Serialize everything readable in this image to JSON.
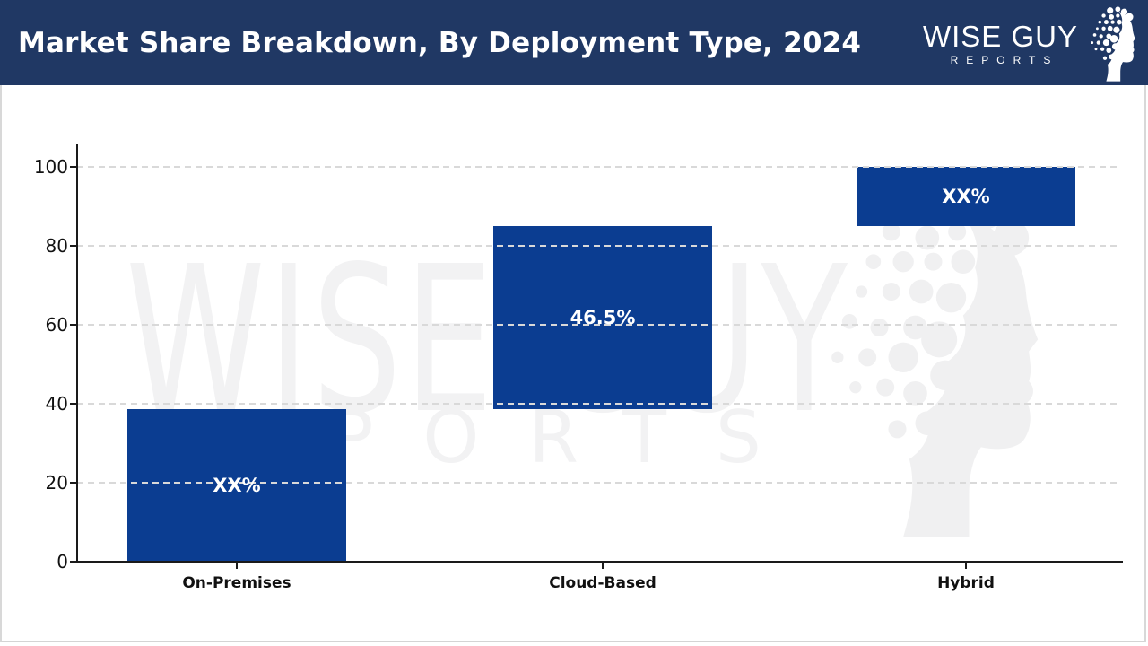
{
  "header": {
    "title": "Market Share Breakdown, By Deployment Type, 2024",
    "bg_color": "#203864",
    "logo": {
      "line1": "WISE GUY",
      "line2": "REPORTS",
      "head_icon": "dotted-head-profile-icon"
    }
  },
  "watermark": {
    "line1": "WISE GUY",
    "line2": "REPORTS",
    "head_icon": "dotted-head-profile-icon",
    "color": "#f2f2f3"
  },
  "chart_data": {
    "type": "bar",
    "variant": "floating-segment-bars",
    "title": "Market Share Breakdown, By Deployment Type, 2024",
    "categories": [
      "On-Premises",
      "Cloud-Based",
      "Hybrid"
    ],
    "segments": [
      {
        "category": "On-Premises",
        "start": 0,
        "end": 38.5,
        "label": "XX%"
      },
      {
        "category": "Cloud-Based",
        "start": 38.5,
        "end": 85,
        "label": "46.5%"
      },
      {
        "category": "Hybrid",
        "start": 85,
        "end": 100,
        "label": "XX%"
      }
    ],
    "yticks": [
      0,
      20,
      40,
      60,
      80,
      100
    ],
    "ylim": [
      0,
      105
    ],
    "xlabel": "",
    "ylabel": "",
    "grid": "horizontal-dashed",
    "legend": "none",
    "bar_color": "#0b3d91",
    "bar_label_color": "#ffffff",
    "gridline_color": "#d9d9d9",
    "axis_color": "#1a1a1a"
  }
}
